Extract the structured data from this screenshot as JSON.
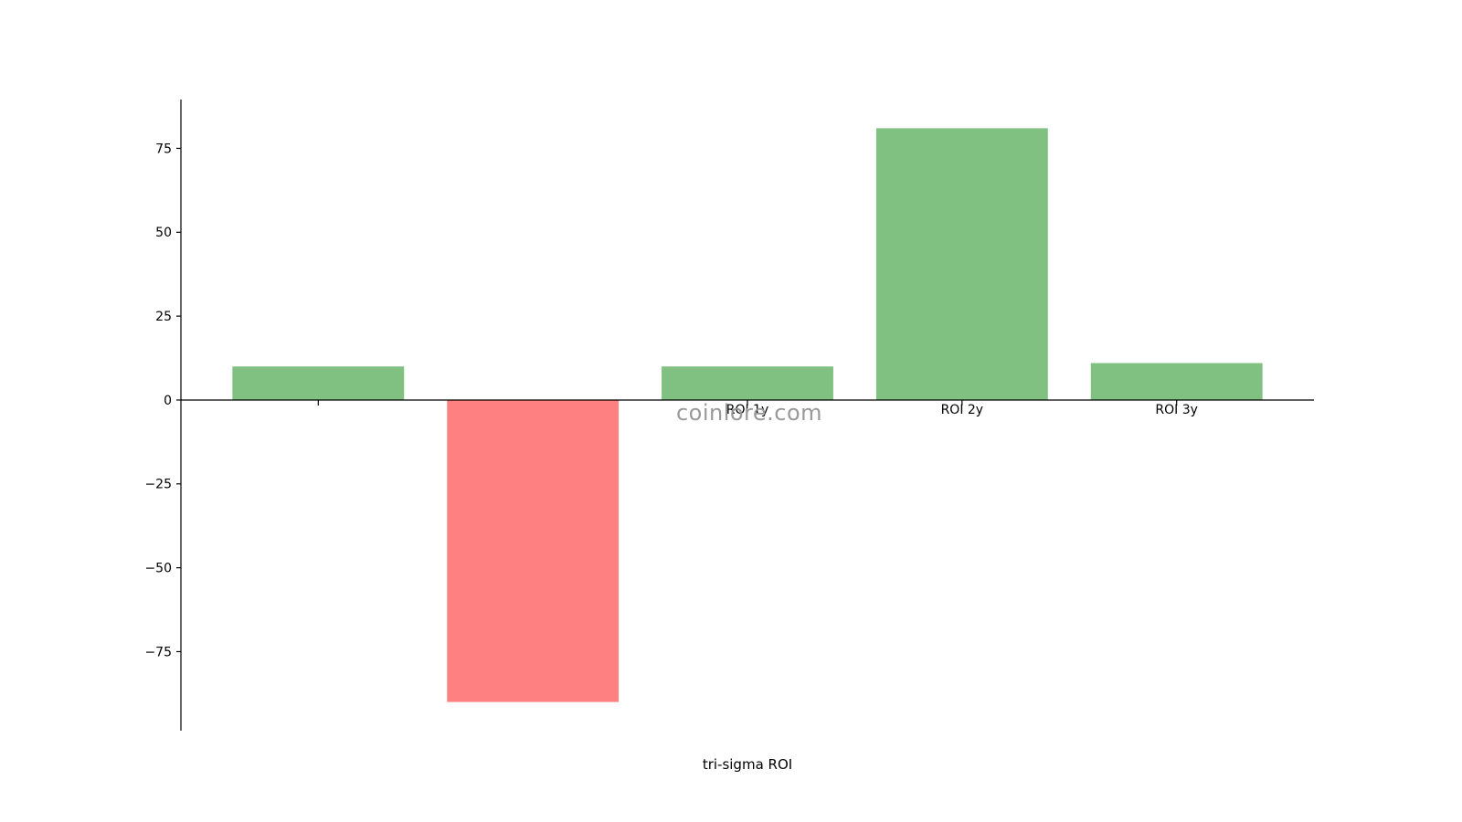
{
  "figure": {
    "background": "#ffffff",
    "watermark": "coinlore.com",
    "watermark_color": "#999999"
  },
  "chart_data": {
    "type": "bar",
    "title": "",
    "xlabel": "tri-sigma ROI",
    "ylabel": "",
    "categories": [
      "",
      "",
      "ROI 1y",
      "ROI 2y",
      "ROI 3y"
    ],
    "values": [
      10,
      -90,
      10,
      81,
      11
    ],
    "bar_colors": [
      "#80c080",
      "#ff8080",
      "#80c080",
      "#80c080",
      "#80c080"
    ],
    "positive_color": "#80c080",
    "negative_color": "#ff8080",
    "yticks": [
      75,
      50,
      25,
      0,
      -25,
      -50,
      -75
    ],
    "ytick_labels": [
      "75",
      "50",
      "25",
      "0",
      "−25",
      "−50",
      "−75"
    ],
    "ylim": [
      -98.55,
      89.55
    ],
    "xlim": [
      -0.64,
      4.64
    ],
    "bar_width": 0.8,
    "grid": false,
    "legend": false,
    "axis_color": "#000000",
    "text_color": "#000000"
  }
}
